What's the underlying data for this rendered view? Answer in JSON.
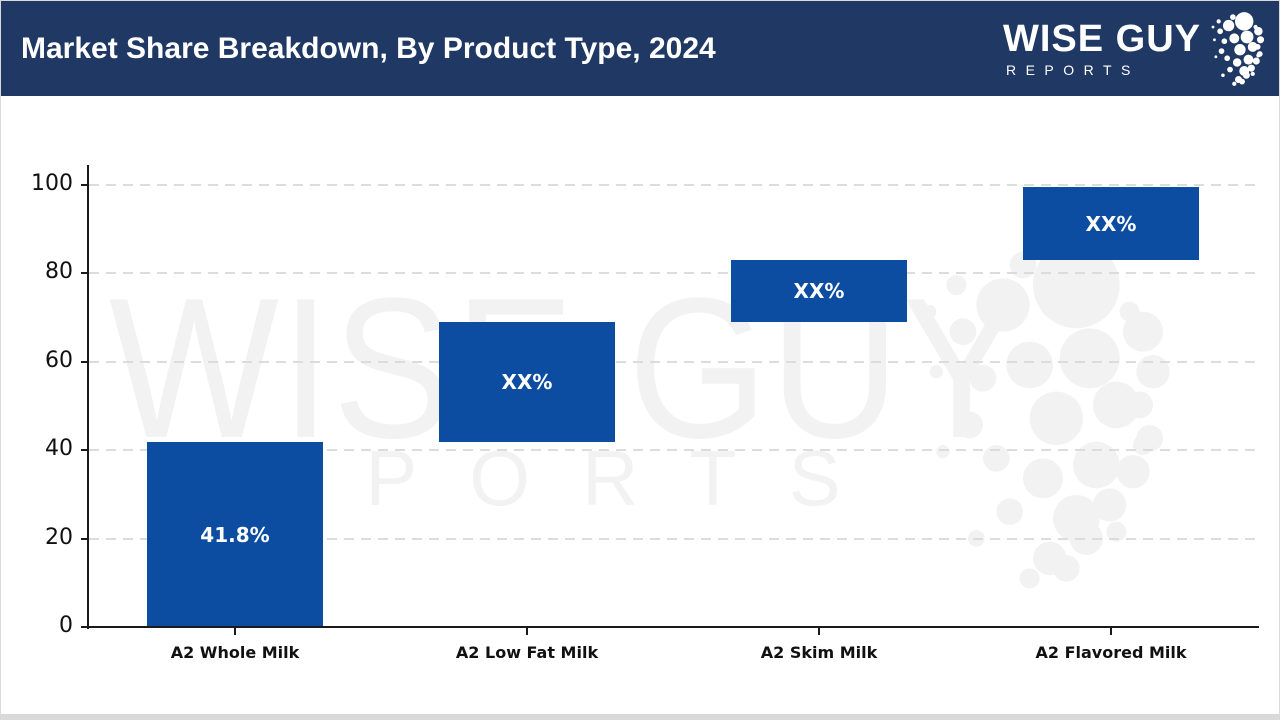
{
  "header": {
    "title": "Market Share Breakdown, By Product Type, 2024",
    "bg_color": "#1f3864",
    "logo_line1": "WISE GUY",
    "logo_line2": "REPORTS"
  },
  "watermark": {
    "line1": "WISE GUY",
    "line2": "REPORTS"
  },
  "chart_data": {
    "type": "bar",
    "subtype": "waterfall",
    "title": "Market Share Breakdown, By Product Type, 2024",
    "categories": [
      "A2 Whole Milk",
      "A2 Low Fat Milk",
      "A2 Skim Milk",
      "A2 Flavored Milk"
    ],
    "segments": [
      {
        "category": "A2 Whole Milk",
        "start": 0,
        "end": 41.8,
        "label": "41.8%"
      },
      {
        "category": "A2 Low Fat Milk",
        "start": 41.8,
        "end": 69,
        "label": "XX%"
      },
      {
        "category": "A2 Skim Milk",
        "start": 69,
        "end": 83,
        "label": "XX%"
      },
      {
        "category": "A2 Flavored Milk",
        "start": 83,
        "end": 99.5,
        "label": "XX%"
      }
    ],
    "ylim": [
      0,
      100
    ],
    "yticks": [
      0,
      20,
      40,
      60,
      80,
      100
    ],
    "xlabel": "",
    "ylabel": "",
    "grid": "horizontal dashed",
    "legend": "none",
    "bar_color": "#0c4da2",
    "bar_label_color": "#ffffff"
  },
  "footer": {
    "strip_color": "#d9d9d9"
  }
}
